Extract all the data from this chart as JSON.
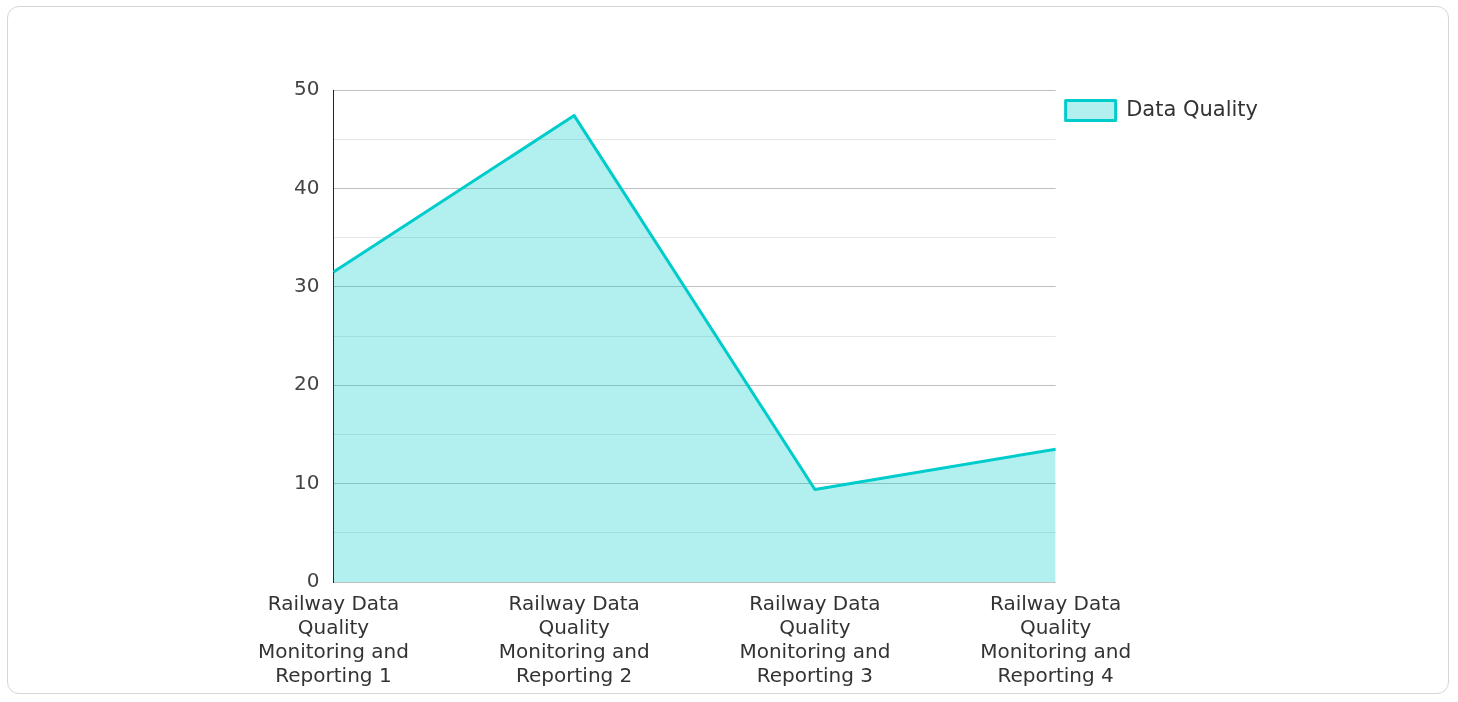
{
  "chart_data": {
    "type": "area",
    "categories": [
      "Railway Data Quality Monitoring and Reporting 1",
      "Railway Data Quality Monitoring and Reporting 2",
      "Railway Data Quality Monitoring and Reporting 3",
      "Railway Data Quality Monitoring and Reporting 4"
    ],
    "series": [
      {
        "name": "Data Quality",
        "color": "#00cccc",
        "values": [
          31.5,
          47.4,
          9.4,
          13.5
        ]
      }
    ],
    "ylim": [
      0,
      50
    ],
    "yticks": [
      0,
      {
        "value": 5,
        "label": null
      },
      10,
      {
        "value": 15,
        "label": null
      },
      20,
      {
        "value": 25,
        "label": null
      },
      30,
      {
        "value": 35,
        "label": null
      },
      40,
      {
        "value": 45,
        "label": null
      },
      50
    ],
    "grid": "y",
    "legend": "top right"
  }
}
